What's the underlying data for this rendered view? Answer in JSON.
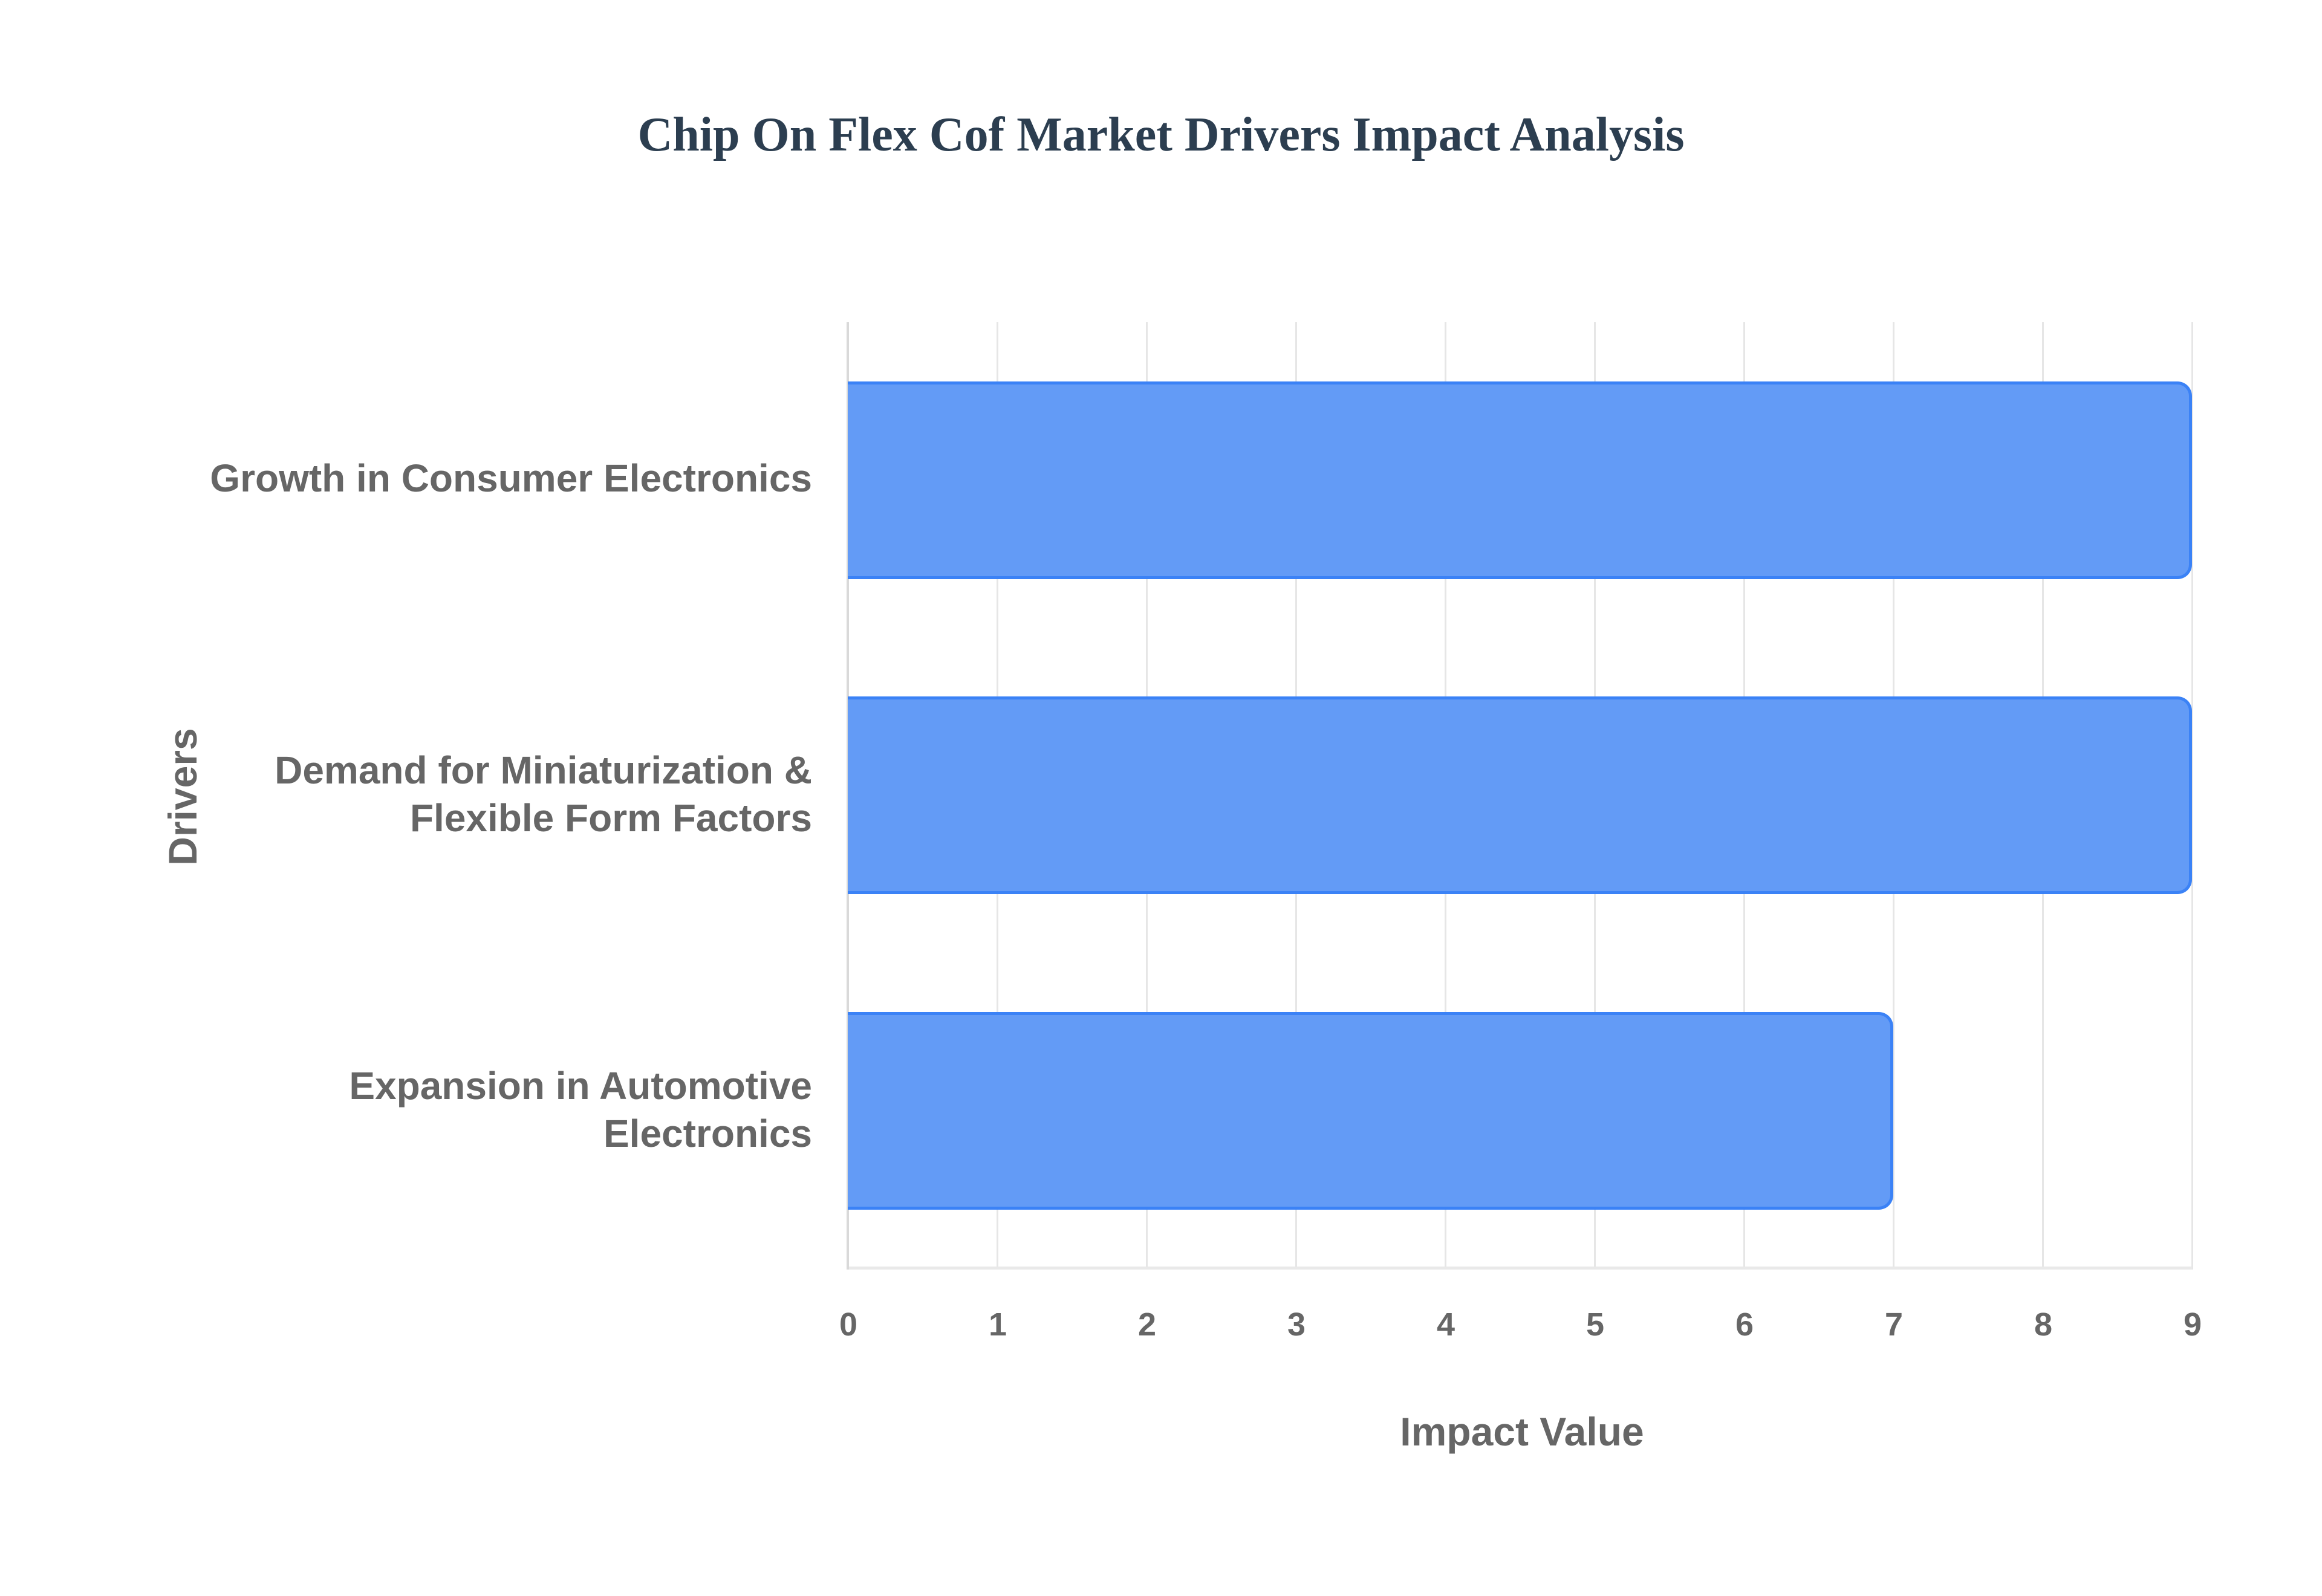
{
  "chart_data": {
    "type": "bar",
    "orientation": "horizontal",
    "title": "Chip On Flex Cof Market Drivers Impact Analysis",
    "xlabel": "Impact Value",
    "ylabel": "Drivers",
    "categories": [
      "Growth in Consumer Electronics",
      "Demand for Miniaturization & Flexible Form Factors",
      "Expansion in Automotive Electronics"
    ],
    "category_lines": [
      [
        "Growth in Consumer Electronics"
      ],
      [
        "Demand for Miniaturization &",
        "Flexible Form Factors"
      ],
      [
        "Expansion in Automotive",
        "Electronics"
      ]
    ],
    "values": [
      9,
      9,
      7
    ],
    "xlim": [
      0,
      9
    ],
    "xticks": [
      "0",
      "1",
      "2",
      "3",
      "4",
      "5",
      "6",
      "7",
      "8",
      "9"
    ],
    "grid": true,
    "legend": null,
    "colors": {
      "bar_fill": "#639bf6",
      "bar_border": "#3b82f6",
      "title": "#2c3e50",
      "label": "#666666"
    }
  }
}
